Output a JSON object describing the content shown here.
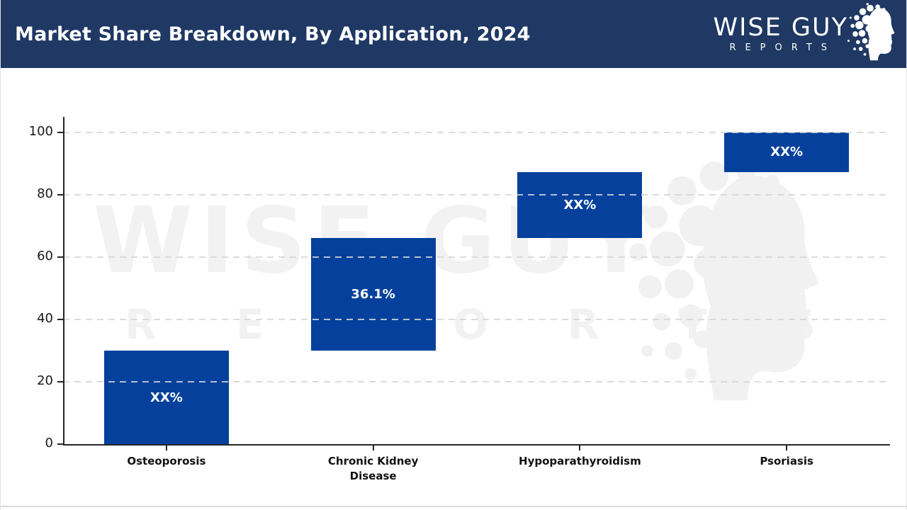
{
  "header": {
    "title": "Market Share Breakdown, By Application, 2024",
    "bg_color": "#1f3864",
    "brand": {
      "line1": "WISE GUY",
      "line2": "REPORTS"
    }
  },
  "watermark": {
    "line1": "WISE GUY",
    "line2": "R E P O R T S"
  },
  "chart_data": {
    "type": "bar",
    "subtype": "waterfall-floating-bars",
    "title": "Market Share Breakdown, By Application, 2024",
    "categories": [
      "Osteoporosis",
      "Chronic Kidney Disease",
      "Hypoparathyroidism",
      "Psoriasis"
    ],
    "category_lines": [
      [
        "Osteoporosis"
      ],
      [
        "Chronic Kidney",
        "Disease"
      ],
      [
        "Hypoparathyroidism"
      ],
      [
        "Psoriasis"
      ]
    ],
    "segments": [
      {
        "category": "Osteoporosis",
        "start": 0,
        "end": 30,
        "label": "XX%"
      },
      {
        "category": "Chronic Kidney Disease",
        "start": 30,
        "end": 66.1,
        "label": "36.1%"
      },
      {
        "category": "Hypoparathyroidism",
        "start": 66.1,
        "end": 87.3,
        "label": "XX%"
      },
      {
        "category": "Psoriasis",
        "start": 87.3,
        "end": 100,
        "label": "XX%"
      }
    ],
    "yticks": [
      "0",
      "20",
      "40",
      "60",
      "80",
      "100"
    ],
    "ytick_values": [
      0,
      20,
      40,
      60,
      80,
      100
    ],
    "ylim": [
      0,
      105
    ],
    "xlabel": "",
    "ylabel": "",
    "grid": true,
    "grid_style": "dashed",
    "legend": "none",
    "bar_color": "#05419c",
    "gridline_color": "#d9d9d9",
    "axis_color": "#262626"
  }
}
